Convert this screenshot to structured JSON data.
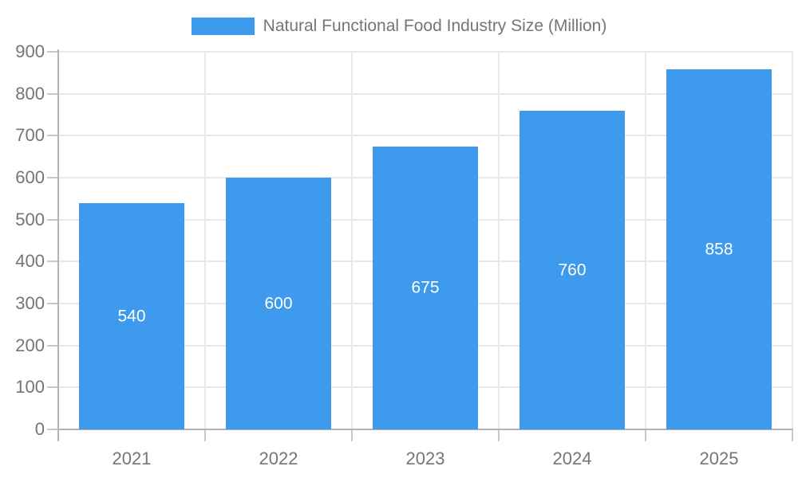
{
  "chart_data": {
    "type": "bar",
    "title": "Natural Functional Food Industry Size (Million)",
    "legend": [
      "Natural Functional Food Industry Size (Million)"
    ],
    "legend_position": "top",
    "categories": [
      "2021",
      "2022",
      "2023",
      "2024",
      "2025"
    ],
    "values": [
      540,
      600,
      675,
      760,
      858
    ],
    "value_labels_shown": true,
    "xlabel": "",
    "ylabel": "",
    "ylim": [
      0,
      900
    ],
    "yticks": [
      0,
      100,
      200,
      300,
      400,
      500,
      600,
      700,
      800,
      900
    ],
    "grid": true,
    "colors": {
      "bar": "#3d9aec",
      "value_label": "#ffffff",
      "axis_text": "#757575",
      "legend_text": "#757575",
      "grid": "#e8e8e8",
      "tick": "#c9c9c9",
      "axis_line": "#b3b3b3",
      "background": "#ffffff"
    }
  }
}
